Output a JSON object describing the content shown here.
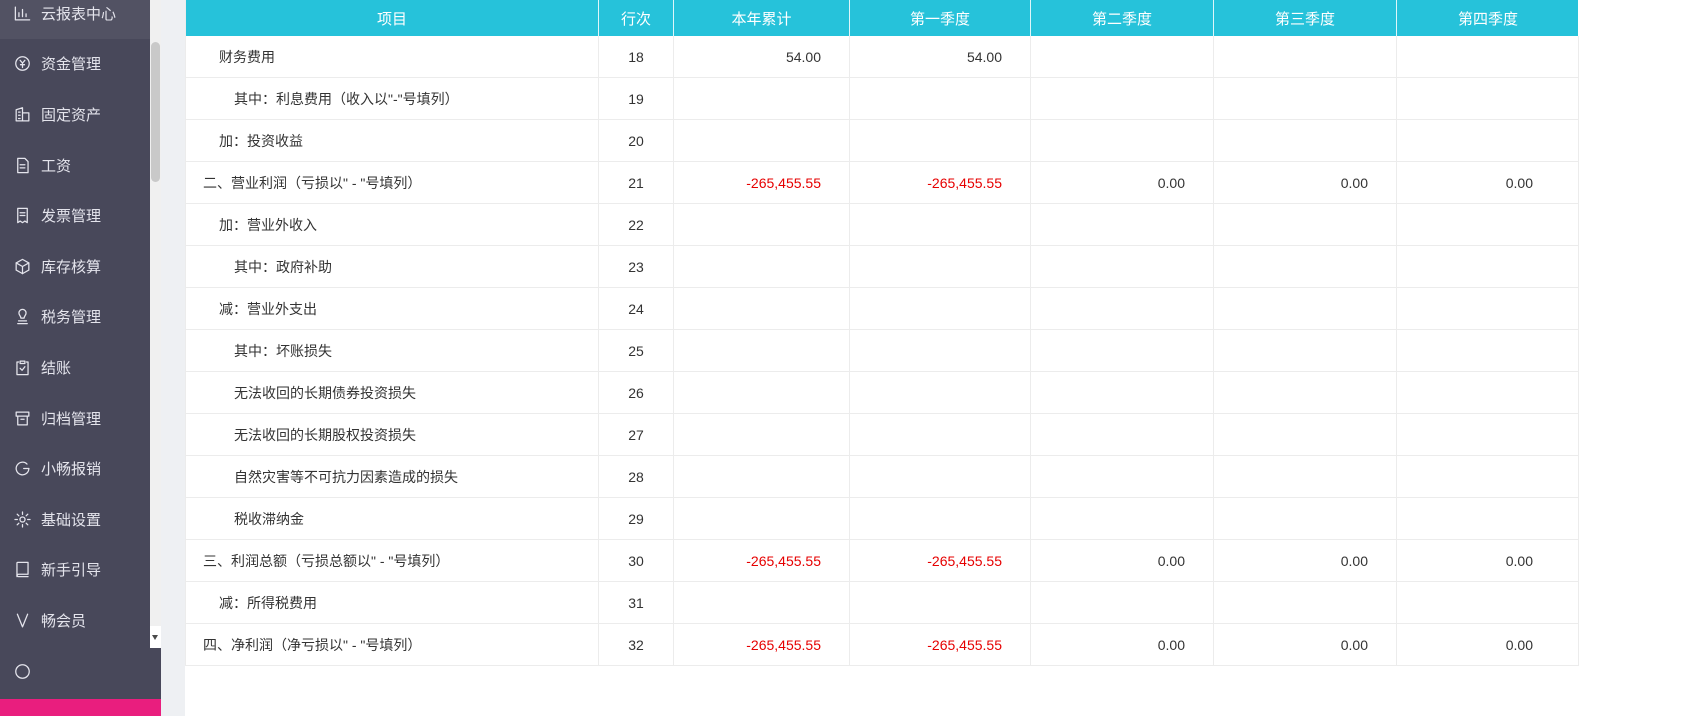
{
  "colors": {
    "sidebar_bg": "#48485a",
    "sidebar_text": "#e4e4ec",
    "table_header_bg": "#26c2da",
    "table_header_text": "#ffffff",
    "negative_value": "#e60000",
    "promo_banner": "#e91e7e",
    "row_border": "#ececec",
    "gutter_bg": "#eef0f3"
  },
  "sidebar": {
    "items": [
      {
        "id": "cloud-report-center",
        "label": "云报表中心",
        "icon": "report-chart-icon"
      },
      {
        "id": "fund-management",
        "label": "资金管理",
        "icon": "money-icon"
      },
      {
        "id": "fixed-assets",
        "label": "固定资产",
        "icon": "building-icon"
      },
      {
        "id": "salary",
        "label": "工资",
        "icon": "salary-doc-icon"
      },
      {
        "id": "invoice-management",
        "label": "发票管理",
        "icon": "invoice-icon"
      },
      {
        "id": "inventory-accounting",
        "label": "库存核算",
        "icon": "inventory-box-icon"
      },
      {
        "id": "tax-management",
        "label": "税务管理",
        "icon": "tax-stamp-icon"
      },
      {
        "id": "closing",
        "label": "结账",
        "icon": "clipboard-check-icon"
      },
      {
        "id": "archive-management",
        "label": "归档管理",
        "icon": "archive-box-icon"
      },
      {
        "id": "xiaochang-reimburse",
        "label": "小畅报销",
        "icon": "g-swirl-icon"
      },
      {
        "id": "basic-settings",
        "label": "基础设置",
        "icon": "gear-icon"
      },
      {
        "id": "beginner-guide",
        "label": "新手引导",
        "icon": "guide-book-icon"
      },
      {
        "id": "chang-member",
        "label": "畅会员",
        "icon": "v-member-icon"
      },
      {
        "id": "partially-hidden",
        "label": "",
        "icon": "circle-icon"
      }
    ]
  },
  "table": {
    "headers": [
      "项目",
      "行次",
      "本年累计",
      "第一季度",
      "第二季度",
      "第三季度",
      "第四季度"
    ],
    "rows": [
      {
        "label": "财务费用",
        "indent": 1,
        "line": "18",
        "values": [
          "54.00",
          "54.00",
          "",
          "",
          ""
        ]
      },
      {
        "label": "其中：利息费用（收入以\"-\"号填列）",
        "indent": 2,
        "line": "19",
        "values": [
          "",
          "",
          "",
          "",
          ""
        ]
      },
      {
        "label": "加：投资收益",
        "indent": 1,
        "line": "20",
        "values": [
          "",
          "",
          "",
          "",
          ""
        ]
      },
      {
        "label": "二、营业利润（亏损以\" - \"号填列）",
        "indent": 0,
        "line": "21",
        "values": [
          "-265,455.55",
          "-265,455.55",
          "0.00",
          "0.00",
          "0.00"
        ]
      },
      {
        "label": "加：营业外收入",
        "indent": 1,
        "line": "22",
        "values": [
          "",
          "",
          "",
          "",
          ""
        ]
      },
      {
        "label": "其中：政府补助",
        "indent": 2,
        "line": "23",
        "values": [
          "",
          "",
          "",
          "",
          ""
        ]
      },
      {
        "label": "减：营业外支出",
        "indent": 1,
        "line": "24",
        "values": [
          "",
          "",
          "",
          "",
          ""
        ]
      },
      {
        "label": "其中：坏账损失",
        "indent": 2,
        "line": "25",
        "values": [
          "",
          "",
          "",
          "",
          ""
        ]
      },
      {
        "label": "无法收回的长期债券投资损失",
        "indent": 2,
        "line": "26",
        "values": [
          "",
          "",
          "",
          "",
          ""
        ]
      },
      {
        "label": "无法收回的长期股权投资损失",
        "indent": 2,
        "line": "27",
        "values": [
          "",
          "",
          "",
          "",
          ""
        ]
      },
      {
        "label": "自然灾害等不可抗力因素造成的损失",
        "indent": 2,
        "line": "28",
        "values": [
          "",
          "",
          "",
          "",
          ""
        ]
      },
      {
        "label": "税收滞纳金",
        "indent": 2,
        "line": "29",
        "values": [
          "",
          "",
          "",
          "",
          ""
        ]
      },
      {
        "label": "三、利润总额（亏损总额以\" - \"号填列）",
        "indent": 0,
        "line": "30",
        "values": [
          "-265,455.55",
          "-265,455.55",
          "0.00",
          "0.00",
          "0.00"
        ]
      },
      {
        "label": "减：所得税费用",
        "indent": 1,
        "line": "31",
        "values": [
          "",
          "",
          "",
          "",
          ""
        ]
      },
      {
        "label": "四、净利润（净亏损以\" - \"号填列）",
        "indent": 0,
        "line": "32",
        "values": [
          "-265,455.55",
          "-265,455.55",
          "0.00",
          "0.00",
          "0.00"
        ]
      }
    ]
  }
}
